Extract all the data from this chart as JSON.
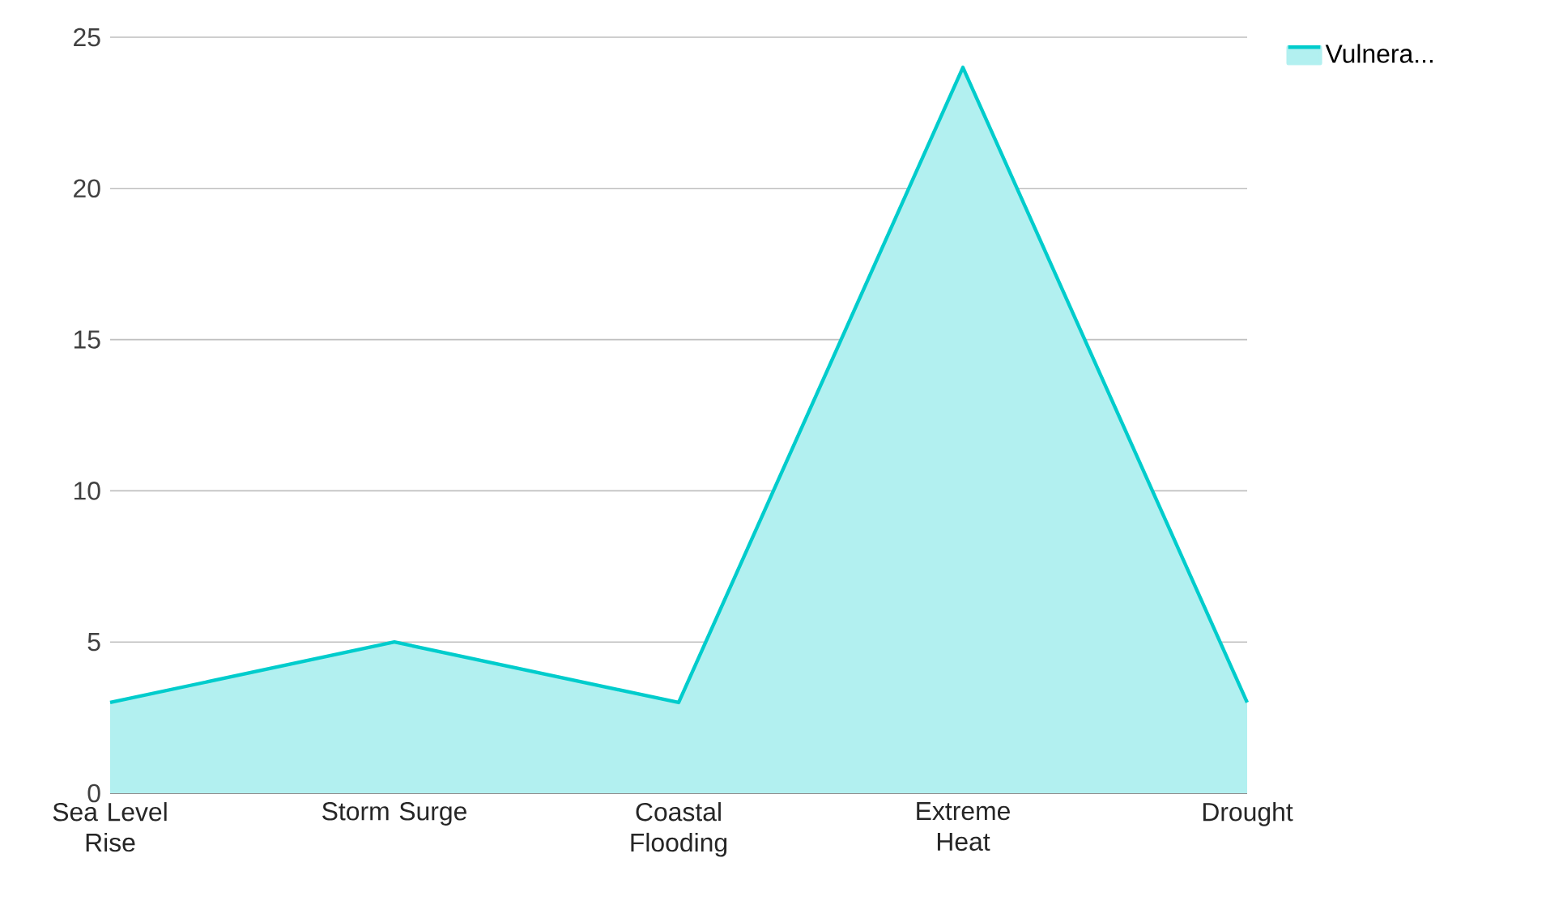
{
  "chart_data": {
    "type": "area",
    "categories": [
      "Sea Level Rise",
      "Storm Surge",
      "Coastal Flooding",
      "Extreme Heat",
      "Drought"
    ],
    "series": [
      {
        "name": "Vulnera...",
        "color": "#00cccc",
        "values": [
          3,
          5,
          3,
          24,
          3
        ]
      }
    ],
    "ylim": [
      0,
      25
    ],
    "yticks": [
      0,
      5,
      10,
      15,
      20,
      25
    ],
    "grid": "y",
    "legend": "top right"
  }
}
